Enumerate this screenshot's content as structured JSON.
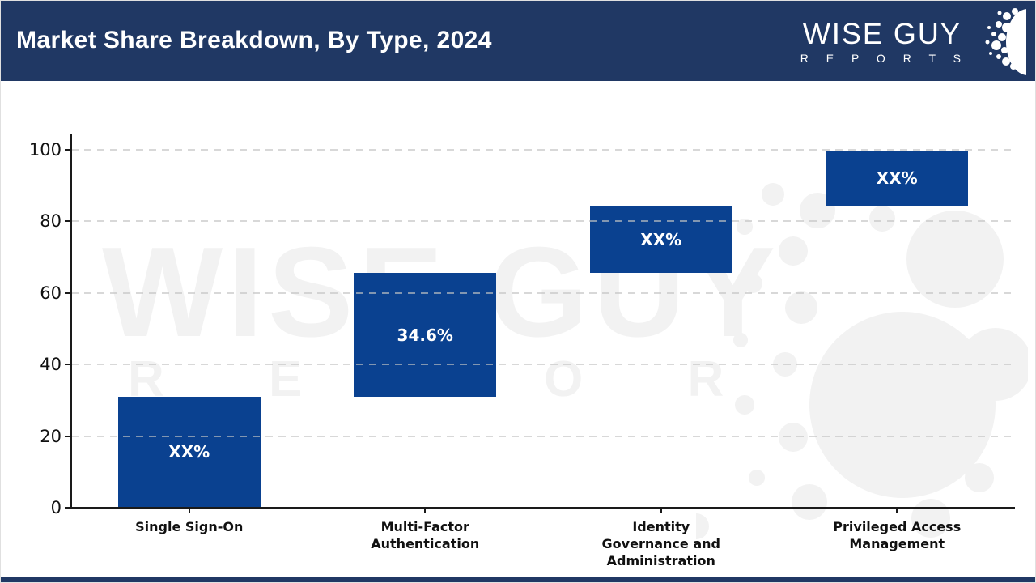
{
  "header": {
    "title": "Market Share Breakdown, By Type, 2024",
    "logo": {
      "line1": "WISE GUY",
      "line2": "R E P O R T S"
    }
  },
  "watermark": {
    "line1": "WISE GUY",
    "line2": "R E P O R T S"
  },
  "colors": {
    "header_bg": "#203864",
    "footer_bg": "#203864",
    "bar": "#0a4190",
    "bar_label": "#ffffff",
    "grid": "#d9d9d9",
    "axis": "#1a1a1a",
    "watermark": "#f2f2f2",
    "title_text": "#ffffff"
  },
  "chart_data": {
    "type": "bar",
    "subtype": "floating-waterfall",
    "title": "Market Share Breakdown, By Type, 2024",
    "xlabel": "",
    "ylabel": "",
    "ylim": [
      0,
      100
    ],
    "yticks": [
      0,
      20,
      40,
      60,
      80,
      100
    ],
    "grid": "horizontal-dashed",
    "legend": "none",
    "categories": [
      "Single Sign-On",
      "Multi-Factor Authentication",
      "Identity Governance and Administration",
      "Privileged Access Management"
    ],
    "bars": [
      {
        "category": "Single Sign-On",
        "category_lines": [
          "Single Sign-On"
        ],
        "start": 0,
        "end": 31.0,
        "label": "XX%"
      },
      {
        "category": "Multi-Factor Authentication",
        "category_lines": [
          "Multi-Factor",
          "Authentication"
        ],
        "start": 31.0,
        "end": 65.6,
        "label": "34.6%"
      },
      {
        "category": "Identity Governance and Administration",
        "category_lines": [
          "Identity",
          "Governance and",
          "Administration"
        ],
        "start": 65.6,
        "end": 84.4,
        "label": "XX%"
      },
      {
        "category": "Privileged Access Management",
        "category_lines": [
          "Privileged Access",
          "Management"
        ],
        "start": 84.4,
        "end": 99.6,
        "label": "XX%"
      }
    ]
  }
}
